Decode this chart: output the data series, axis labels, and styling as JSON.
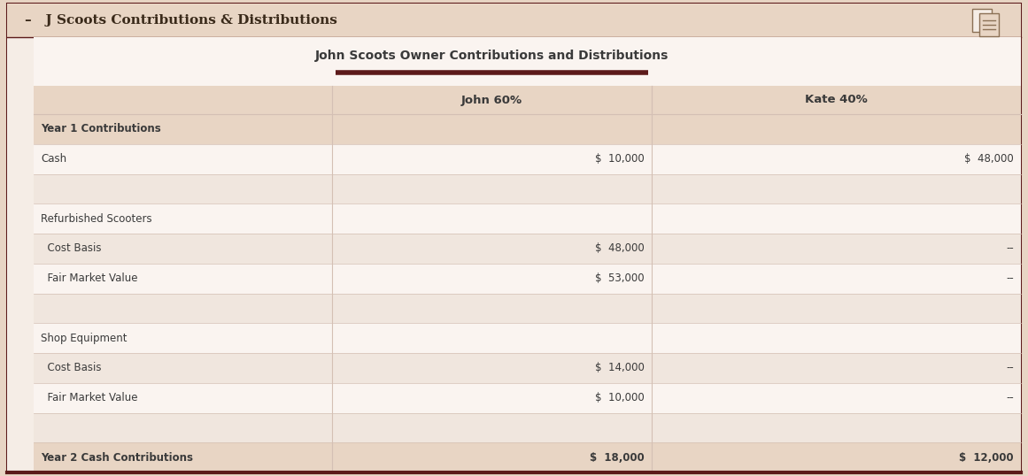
{
  "title": "–   J Scoots Contributions & Distributions",
  "subtitle": "John Scoots Owner Contributions and Distributions",
  "col1_header": "John 60%",
  "col2_header": "Kate 40%",
  "title_bar_bg": "#e8d5c4",
  "table_bg": "#f5ede6",
  "header_row_bg": "#e8d5c4",
  "row_bg_even": "#f2e6de",
  "row_bg_odd": "#faf4f0",
  "row_bg_section": "#e8d5c4",
  "row_bg_subheader": "#faf4f0",
  "outer_bg": "#e8d5c4",
  "border_color": "#5c1a1a",
  "title_color": "#3a2a1a",
  "text_color": "#3a3a3a",
  "value_color": "#3a3a3a",
  "col_divider_color": "#d4c0b4",
  "subtitle_underline_color": "#5c1a1a",
  "rows": [
    {
      "label": "Year 1 Contributions",
      "john": "",
      "kate": "",
      "style": "section_header",
      "bold": true
    },
    {
      "label": "Cash",
      "john": "$  10,000",
      "kate": "$  48,000",
      "style": "data_odd",
      "bold": false
    },
    {
      "label": "",
      "john": "",
      "kate": "",
      "style": "spacer_even",
      "bold": false
    },
    {
      "label": "Refurbished Scooters",
      "john": "",
      "kate": "",
      "style": "subheader",
      "bold": false
    },
    {
      "label": "  Cost Basis",
      "john": "$  48,000",
      "kate": "--",
      "style": "data_even",
      "bold": false
    },
    {
      "label": "  Fair Market Value",
      "john": "$  53,000",
      "kate": "--",
      "style": "data_odd",
      "bold": false
    },
    {
      "label": "",
      "john": "",
      "kate": "",
      "style": "spacer_even",
      "bold": false
    },
    {
      "label": "Shop Equipment",
      "john": "",
      "kate": "",
      "style": "subheader",
      "bold": false
    },
    {
      "label": "  Cost Basis",
      "john": "$  14,000",
      "kate": "--",
      "style": "data_even",
      "bold": false
    },
    {
      "label": "  Fair Market Value",
      "john": "$  10,000",
      "kate": "--",
      "style": "data_odd",
      "bold": false
    },
    {
      "label": "",
      "john": "",
      "kate": "",
      "style": "spacer_even",
      "bold": false
    },
    {
      "label": "Year 2 Cash Contributions",
      "john": "$  18,000",
      "kate": "$  12,000",
      "style": "section_footer",
      "bold": true
    }
  ],
  "figsize": [
    11.61,
    5.38
  ],
  "dpi": 100
}
